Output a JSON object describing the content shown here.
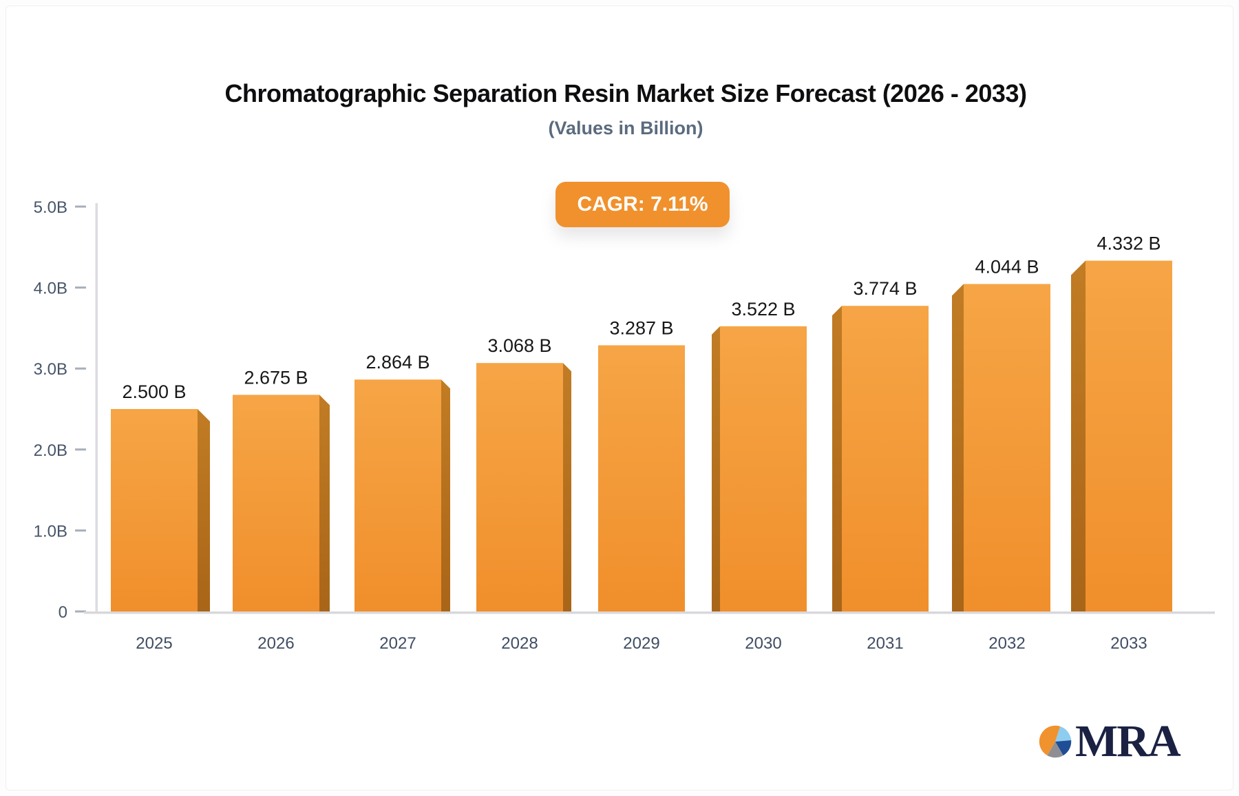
{
  "header": {
    "title": "Chromatographic Separation Resin Market Size Forecast (2026 - 2033)",
    "subtitle": "(Values in Billion)"
  },
  "badge": {
    "label": "CAGR: 7.11%"
  },
  "chart_data": {
    "type": "bar",
    "categories": [
      "2025",
      "2026",
      "2027",
      "2028",
      "2029",
      "2030",
      "2031",
      "2032",
      "2033"
    ],
    "values": [
      2.5,
      2.675,
      2.864,
      3.068,
      3.287,
      3.522,
      3.774,
      4.044,
      4.332
    ],
    "value_labels": [
      "2.500 B",
      "2.675 B",
      "2.864 B",
      "3.068 B",
      "3.287 B",
      "3.522 B",
      "3.774 B",
      "4.044 B",
      "4.332 B"
    ],
    "title": "Chromatographic Separation Resin Market Size Forecast (2026 - 2033)",
    "subtitle": "(Values in Billion)",
    "xlabel": "",
    "ylabel": "",
    "ylim": [
      0,
      5
    ],
    "grid": false,
    "yticks": [
      {
        "v": 5,
        "label": "5.0B"
      },
      {
        "v": 4,
        "label": "4.0B"
      },
      {
        "v": 3,
        "label": "3.0B"
      },
      {
        "v": 2,
        "label": "2.0B"
      },
      {
        "v": 1,
        "label": "1.0B"
      },
      {
        "v": 0,
        "label": "0"
      }
    ],
    "colors": {
      "bar_face_top": "#f6a546",
      "bar_face_bottom": "#f08f2b",
      "bar_side_top": "#c17c24",
      "bar_side_bottom": "#a96518",
      "axis_line": "#dcdce1",
      "tick_mark": "#a8afba",
      "tick_label": "#475569",
      "category_label": "#3f4d63",
      "value_label": "#171717"
    }
  },
  "logo": {
    "text": "MRA",
    "pie_colors": {
      "orange": "#f0922d",
      "light_blue": "#8ecdf0",
      "navy": "#1f4e96",
      "gray": "#8f8f93"
    }
  }
}
